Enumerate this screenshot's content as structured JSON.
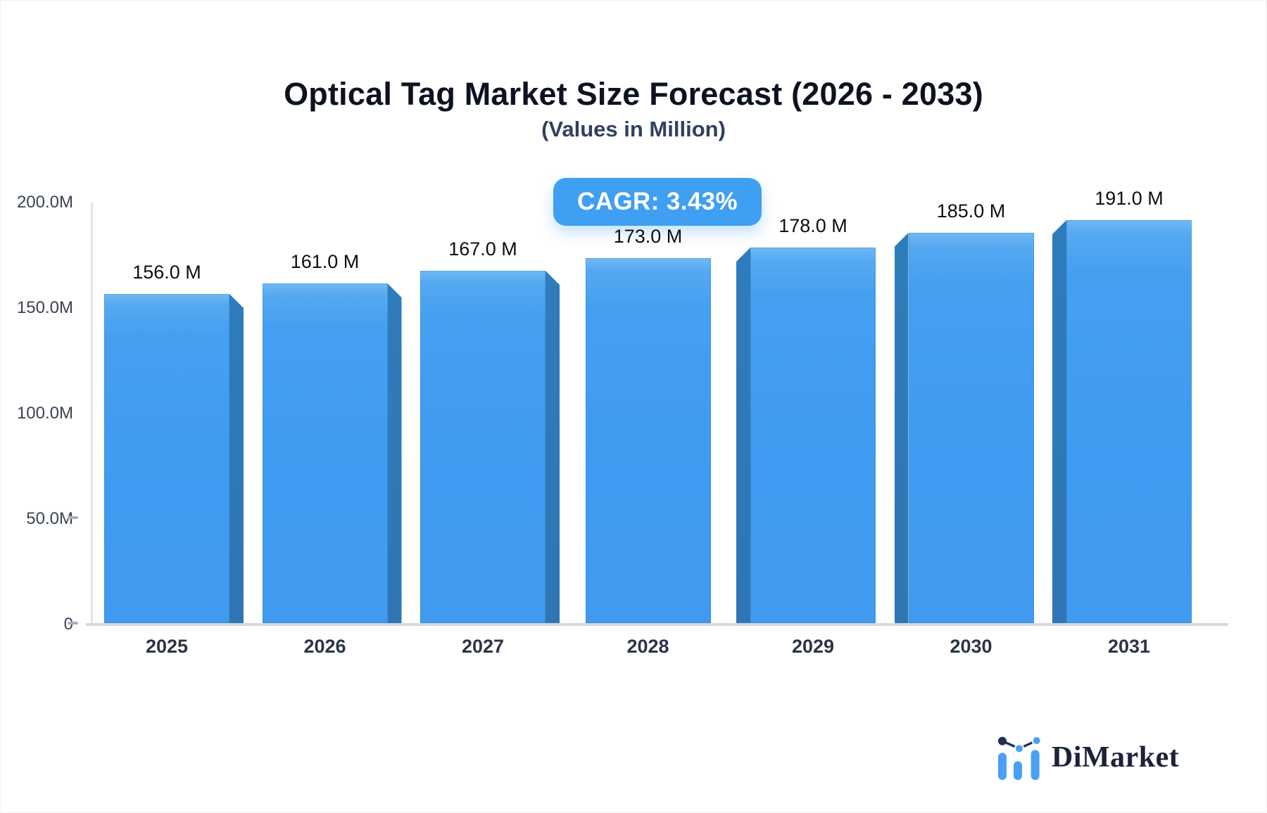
{
  "header": {
    "title": "Optical Tag Market Size Forecast (2026 - 2033)",
    "subtitle": "(Values in Million)"
  },
  "badge": {
    "label": "CAGR: 3.43%",
    "bg": "#3f9ff2"
  },
  "chart_data": {
    "type": "bar",
    "title": "Optical Tag Market Size Forecast (2026 - 2033)",
    "subtitle": "(Values in Million)",
    "categories": [
      "2025",
      "2026",
      "2027",
      "2028",
      "2029",
      "2030",
      "2031"
    ],
    "values": [
      156,
      161,
      167,
      173,
      178,
      185,
      191
    ],
    "value_labels": [
      "156.0 M",
      "161.0 M",
      "167.0 M",
      "173.0 M",
      "178.0 M",
      "185.0 M",
      "191.0 M"
    ],
    "unit": "Million",
    "ylim": [
      0,
      200
    ],
    "y_ticks": [
      {
        "label": "200.0M",
        "value": 200,
        "dash": false
      },
      {
        "label": "150.0M",
        "value": 150,
        "dash": false
      },
      {
        "label": "100.0M",
        "value": 100,
        "dash": false
      },
      {
        "label": "50.0M",
        "value": 50,
        "dash": true
      },
      {
        "label": "0",
        "value": 0,
        "dash": true
      }
    ],
    "annotation": "CAGR: 3.43%",
    "grid": false,
    "legend": false,
    "bar_colors": {
      "face": "#3f9bf1",
      "face_top": "#70b9f4",
      "side": "#2e77b6"
    }
  },
  "logo": {
    "text": "DiMarket",
    "icon": "bar-line-chart-icon",
    "icon_bar_color": "#4aa0f2",
    "icon_dot_dark": "#223055",
    "text_color": "#1a2438"
  }
}
